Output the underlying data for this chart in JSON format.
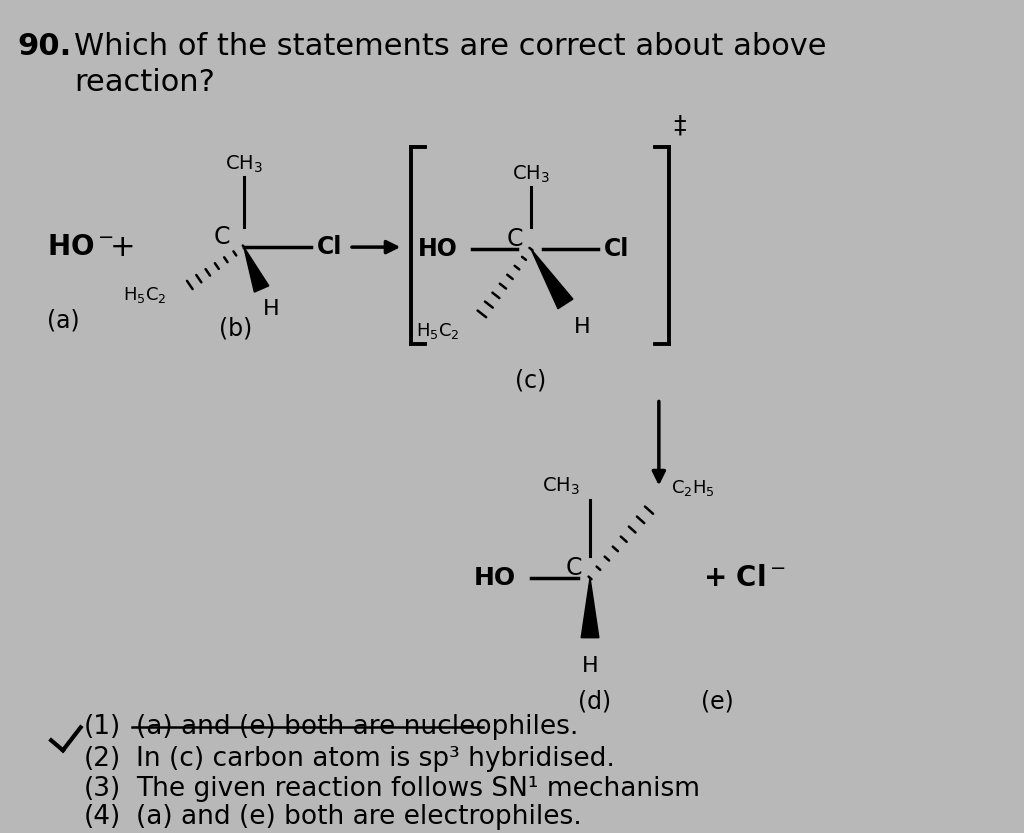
{
  "bg_color": "#b8b8b8",
  "title_fontsize": 22,
  "answer_fontsize": 19,
  "label_fontsize": 17,
  "small_fontsize": 13,
  "options": [
    {
      "num": "(1)",
      "text": "(a) and (e) both are nucleophiles.",
      "crossed": true
    },
    {
      "num": "(2)",
      "text": "In (c) carbon atom is sp³ hybridised.",
      "crossed": false
    },
    {
      "num": "(3)",
      "text": "The given reaction follows SN¹ mechanism",
      "crossed": false
    },
    {
      "num": "(4)",
      "text": "(a) and (e) both are electrophiles.",
      "crossed": false
    }
  ]
}
